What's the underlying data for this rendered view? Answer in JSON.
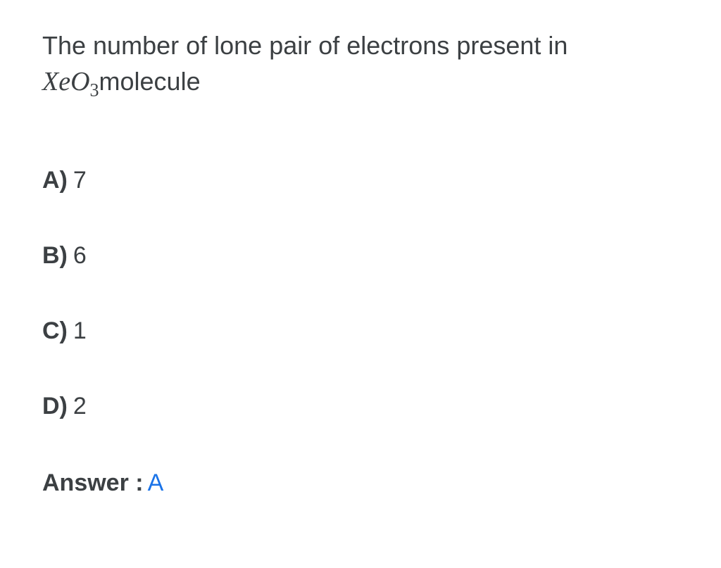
{
  "question": {
    "line1": "The number of lone pair of electrons present in",
    "formula_element": "XeO",
    "formula_subscript": "3",
    "line2_suffix": "molecule"
  },
  "options": [
    {
      "label": "A)",
      "value": "7"
    },
    {
      "label": "B)",
      "value": "6"
    },
    {
      "label": "C)",
      "value": "1"
    },
    {
      "label": "D)",
      "value": "2"
    }
  ],
  "answer": {
    "label": "Answer :",
    "value": "A"
  },
  "colors": {
    "text": "#3c4043",
    "link": "#1a73e8",
    "background": "#ffffff"
  },
  "typography": {
    "question_fontsize": 36,
    "option_fontsize": 34,
    "answer_fontsize": 34
  }
}
